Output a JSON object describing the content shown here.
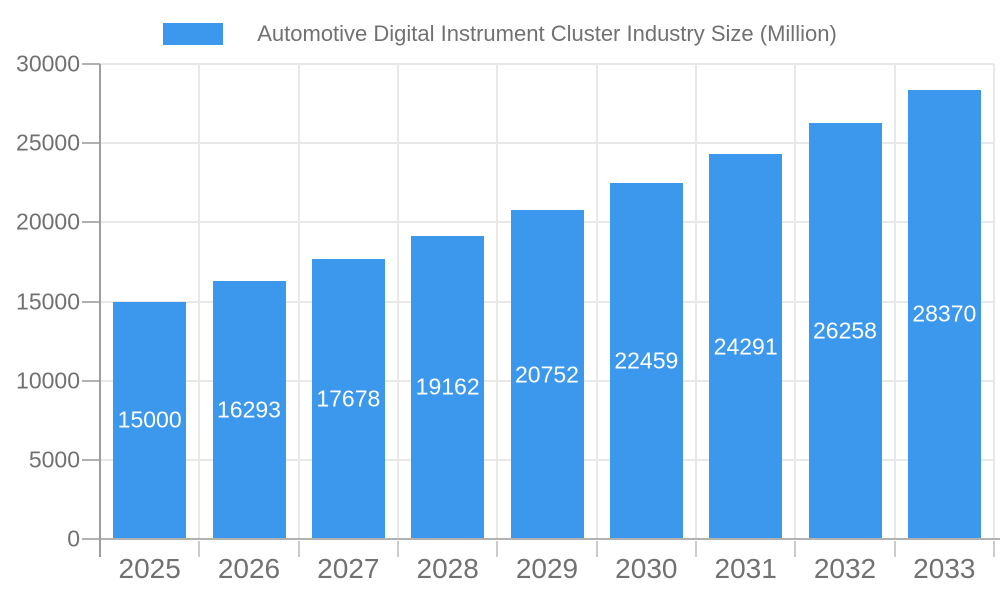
{
  "chart_data": {
    "type": "bar",
    "title": "Automotive Digital Instrument Cluster Industry Size (Million)",
    "categories": [
      "2025",
      "2026",
      "2027",
      "2028",
      "2029",
      "2030",
      "2031",
      "2032",
      "2033"
    ],
    "values": [
      15000,
      16293,
      17678,
      19162,
      20752,
      22459,
      24291,
      26258,
      28370
    ],
    "xlabel": "",
    "ylabel": "",
    "ylim": [
      0,
      30000
    ],
    "ytick_step": 5000,
    "ytick_labels": [
      "0",
      "5000",
      "10000",
      "15000",
      "20000",
      "25000",
      "30000"
    ],
    "grid": true,
    "legend_position": "top",
    "value_labels": "inside-center"
  },
  "colors": {
    "bar": "#3B98EC",
    "grid": "#E8E8E8",
    "x_axis": "#B1B1B1",
    "y_axis": "#9E9E9E",
    "tick": "#CCCCCC",
    "text": "#717171",
    "value_label": "#FFFFFF",
    "background": "#FFFFFF"
  }
}
